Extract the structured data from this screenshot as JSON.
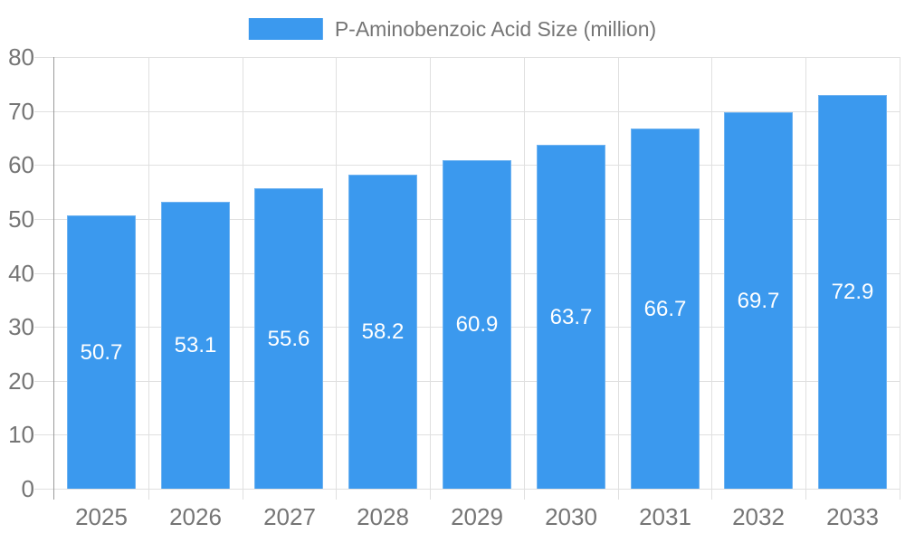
{
  "chart_data": {
    "type": "bar",
    "title": "",
    "categories": [
      "2025",
      "2026",
      "2027",
      "2028",
      "2029",
      "2030",
      "2031",
      "2032",
      "2033"
    ],
    "series": [
      {
        "name": "P-Aminobenzoic Acid Size (million)",
        "values": [
          50.7,
          53.1,
          55.6,
          58.2,
          60.9,
          63.7,
          66.7,
          69.7,
          72.9
        ]
      }
    ],
    "xlabel": "",
    "ylabel": "",
    "ylim": [
      0,
      80
    ],
    "yticks": [
      0,
      10,
      20,
      30,
      40,
      50,
      60,
      70,
      80
    ],
    "grid": true,
    "bar_value_labels": true,
    "legend_position": "top",
    "colors": {
      "bar": "#3b99ee",
      "bar_edge": "#6fb3f1",
      "grid": "#e0e0e0",
      "axis": "#9a9a9a",
      "tick_label": "#757575",
      "legend_label": "#757575",
      "value_label": "#ffffff",
      "background": "#ffffff"
    }
  }
}
